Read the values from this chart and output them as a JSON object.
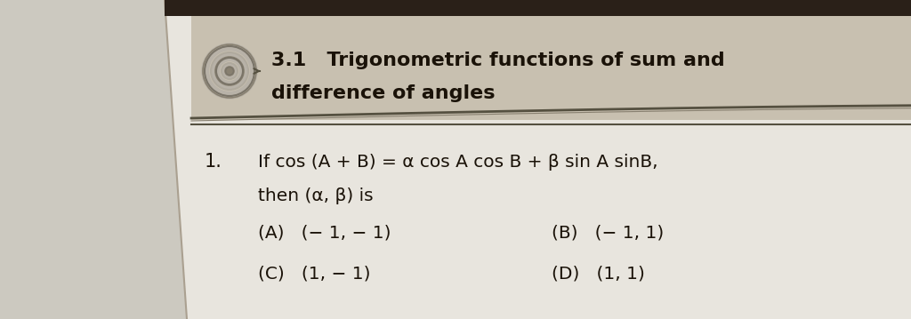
{
  "bg_color": "#d8d4cc",
  "page_color": "#e8e5de",
  "left_page_color": "#ccc9c0",
  "header_bg": "#b8b0a0",
  "dark_top": "#2a2018",
  "title_line1": "3.1   Trigonometric functions of sum and",
  "title_line2": "        difference of angles",
  "q_num": "1.",
  "q_line1": "If cos (A + B) = α cos A cos B + β sin A sinB,",
  "q_line2": "then (α, β) is",
  "opt_A": "(A)   (− 1, − 1)",
  "opt_B": "(B)   (− 1, 1)",
  "opt_C": "(C)   (1, − 1)",
  "opt_D": "(D)   (1, 1)",
  "text_color": "#1a1208",
  "line_color": "#555040"
}
